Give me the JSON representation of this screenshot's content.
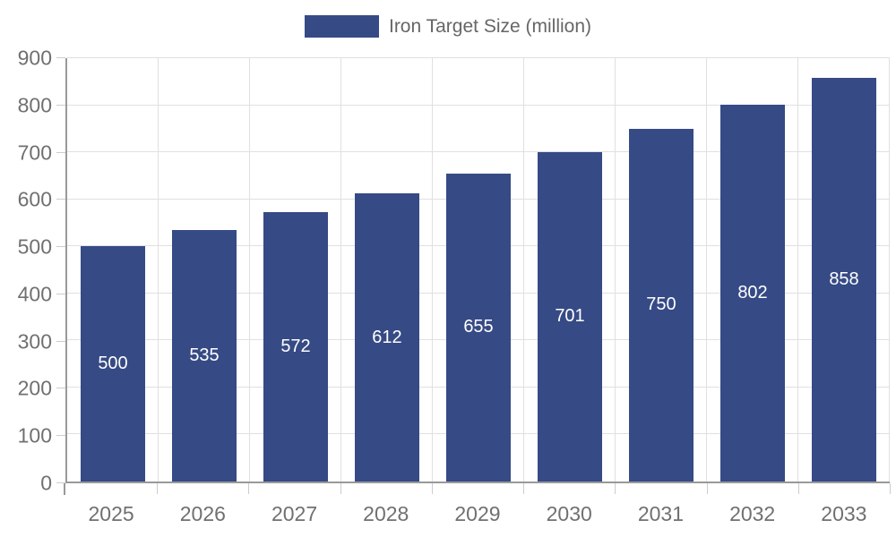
{
  "chart_data": {
    "type": "bar",
    "title": "Iron Target Size (million)",
    "legend_label": "Iron Target Size (million)",
    "legend_position": "top-center",
    "categories": [
      "2025",
      "2026",
      "2027",
      "2028",
      "2029",
      "2030",
      "2031",
      "2032",
      "2033"
    ],
    "values": [
      500,
      535,
      572,
      612,
      655,
      701,
      750,
      802,
      858
    ],
    "value_labels_shown": true,
    "xlabel": "",
    "ylabel": "",
    "ylim": [
      0,
      900
    ],
    "yticks": [
      0,
      100,
      200,
      300,
      400,
      500,
      600,
      700,
      800,
      900
    ],
    "grid": true,
    "colors": {
      "bar": "#364a85",
      "value_label": "#ffffff",
      "axis_text": "#707070",
      "legend_text": "#666666",
      "grid_line": "#e0e0e0",
      "axis_line": "#999999",
      "tick": "#cccccc",
      "background": "#ffffff"
    }
  }
}
